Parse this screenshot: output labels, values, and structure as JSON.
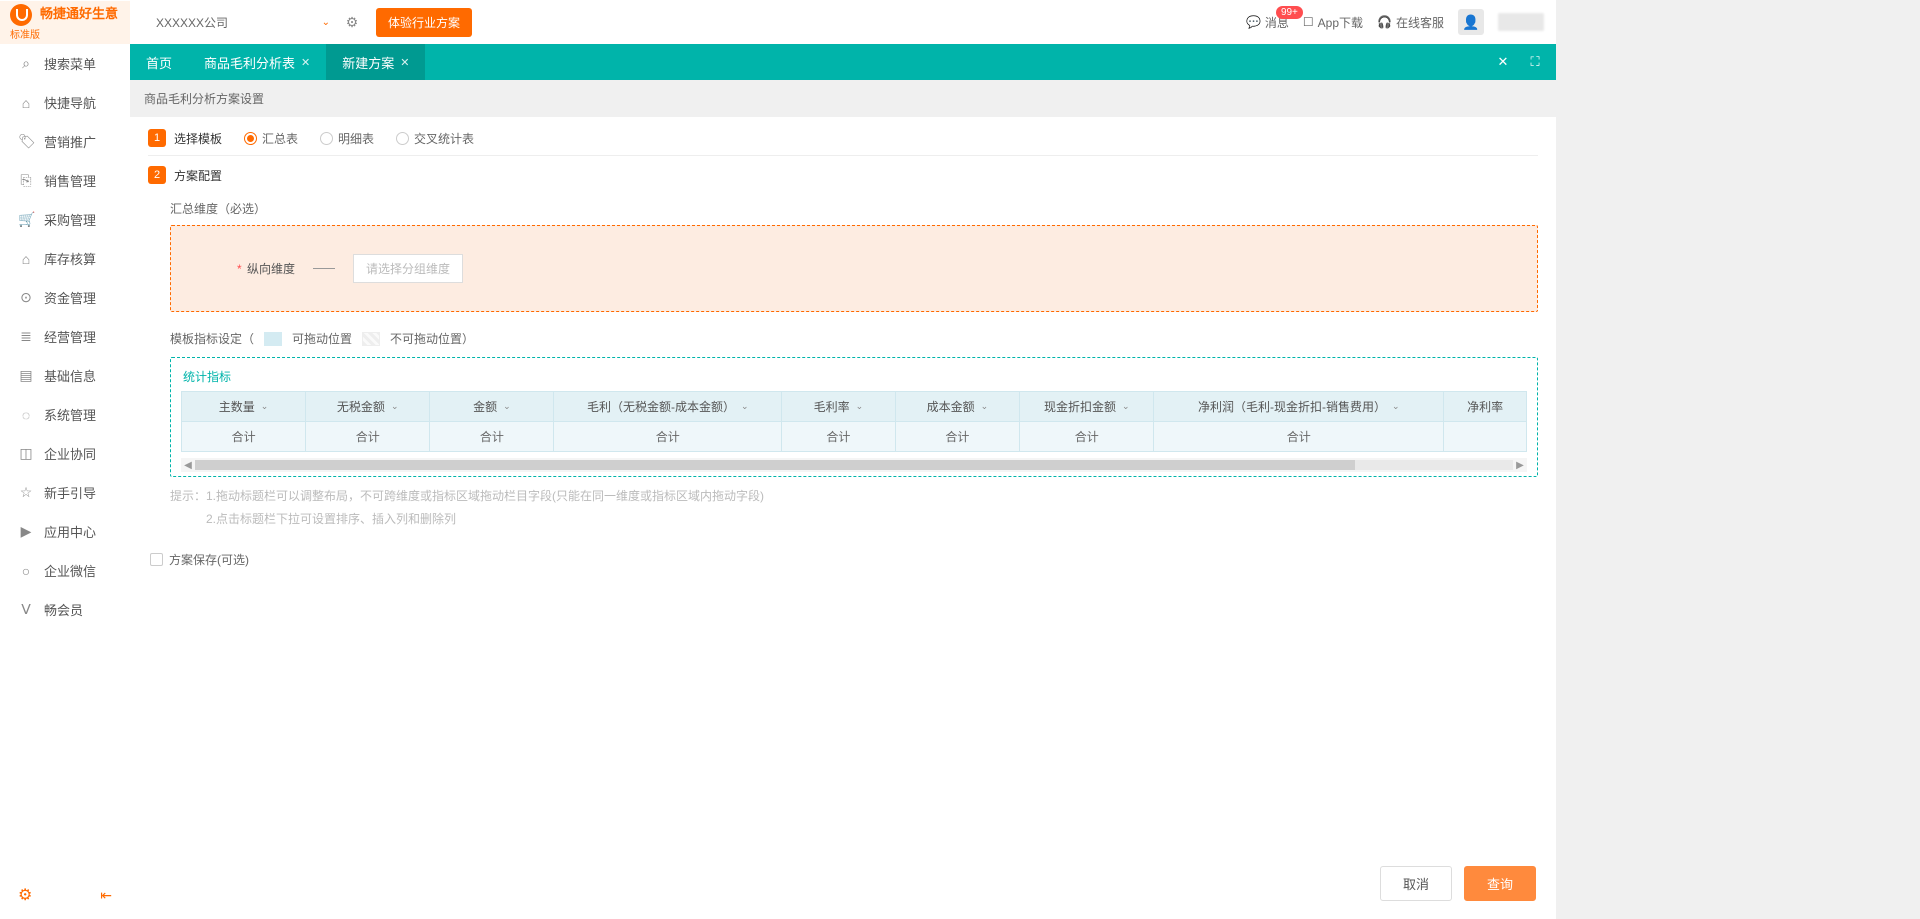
{
  "brand": {
    "name": "畅捷通好生意",
    "edition": "标准版"
  },
  "header": {
    "company": "XXXXXX公司",
    "trial_btn": "体验行业方案",
    "msg_label": "消息",
    "badge": "99+",
    "app_label": "App下载",
    "cs_label": "在线客服"
  },
  "sidebar": {
    "items": [
      {
        "icon": "⌕",
        "label": "搜索菜单"
      },
      {
        "icon": "⌂",
        "label": "快捷导航"
      },
      {
        "icon": "🏷",
        "label": "营销推广"
      },
      {
        "icon": "⎘",
        "label": "销售管理"
      },
      {
        "icon": "🛒",
        "label": "采购管理"
      },
      {
        "icon": "⌂",
        "label": "库存核算"
      },
      {
        "icon": "⊙",
        "label": "资金管理"
      },
      {
        "icon": "≣",
        "label": "经营管理"
      },
      {
        "icon": "▤",
        "label": "基础信息"
      },
      {
        "icon": "◌",
        "label": "系统管理"
      },
      {
        "icon": "◫",
        "label": "企业协同"
      },
      {
        "icon": "☆",
        "label": "新手引导"
      },
      {
        "icon": "▶",
        "label": "应用中心"
      },
      {
        "icon": "○",
        "label": "企业微信"
      },
      {
        "icon": "Ⅴ",
        "label": "畅会员"
      }
    ]
  },
  "tabs": {
    "home": "首页",
    "analysis": "商品毛利分析表",
    "new_plan": "新建方案"
  },
  "breadcrumb": "商品毛利分析方案设置",
  "step1": {
    "title": "选择模板",
    "opts": [
      "汇总表",
      "明细表",
      "交叉统计表"
    ]
  },
  "step2": {
    "title": "方案配置",
    "dim_section": "汇总维度（必选）",
    "vertical_label": "纵向维度",
    "placeholder": "请选择分组维度",
    "legend_label": "模板指标设定（",
    "legend_drag": "可拖动位置",
    "legend_fixed": "不可拖动位置）",
    "stat_label": "统计指标",
    "columns": [
      "主数量",
      "无税金额",
      "金额",
      "毛利（无税金额-成本金额）",
      "毛利率",
      "成本金额",
      "现金折扣金额",
      "净利润（毛利-现金折扣-销售费用）",
      "净利率"
    ],
    "total_label": "合计",
    "hint1": "提示：1.拖动标题栏可以调整布局，不可跨维度或指标区域拖动栏目字段(只能在同一维度或指标区域内拖动字段)",
    "hint2": "2.点击标题栏下拉可设置排序、插入列和删除列"
  },
  "save_label": "方案保存(可选)",
  "footer": {
    "cancel": "取消",
    "query": "查询"
  }
}
